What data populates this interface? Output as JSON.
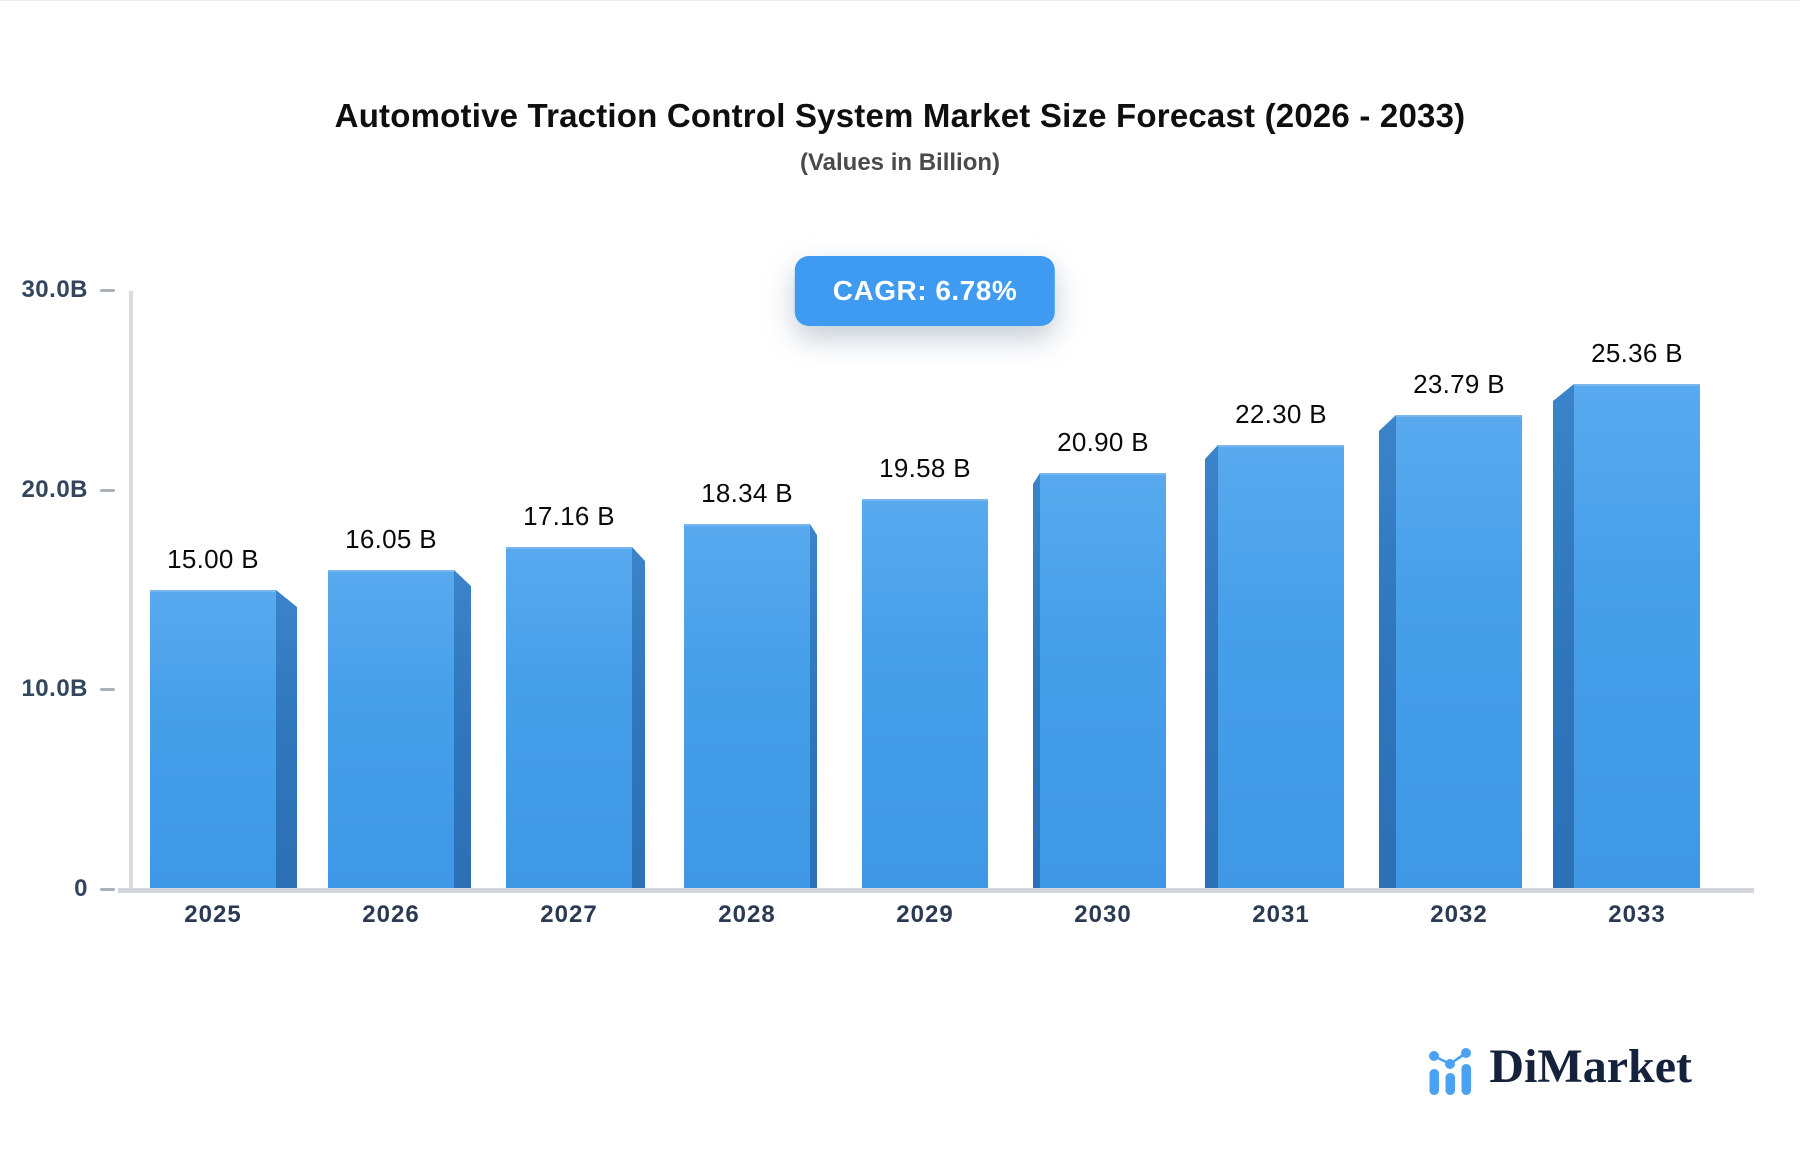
{
  "header": {
    "title": "Automotive Traction Control System Market Size Forecast (2026 - 2033)",
    "subtitle": "(Values in Billion)"
  },
  "badge": {
    "label": "CAGR: 6.78%",
    "background_color": "#3e9bf1",
    "text_color": "#ffffff"
  },
  "chart_data": {
    "type": "bar",
    "title": "Automotive Traction Control System Market Size Forecast (2026 - 2033)",
    "subtitle": "(Values in Billion)",
    "categories": [
      "2025",
      "2026",
      "2027",
      "2028",
      "2029",
      "2030",
      "2031",
      "2032",
      "2033"
    ],
    "values": [
      15.0,
      16.05,
      17.16,
      18.34,
      19.58,
      20.9,
      22.3,
      23.79,
      25.36
    ],
    "value_labels": [
      "15.00 B",
      "16.05 B",
      "17.16 B",
      "18.34 B",
      "19.58 B",
      "20.90 B",
      "22.30 B",
      "23.79 B",
      "25.36 B"
    ],
    "xlabel": "",
    "ylabel": "",
    "ylim": [
      0,
      30
    ],
    "yticks": [
      {
        "value": 0,
        "label": "0"
      },
      {
        "value": 10,
        "label": "10.0B"
      },
      {
        "value": 20,
        "label": "20.0B"
      },
      {
        "value": 30,
        "label": "30.0B"
      }
    ],
    "grid": false,
    "legend": false,
    "style": "3d-perspective-bars",
    "bar_face_color": "#459fe9",
    "bar_side_color": "#2e75bb",
    "axis_line_color": "#d5d8dd",
    "tick_label_color": "#32465e",
    "value_label_color": "#0a0a0a"
  },
  "logo": {
    "text": "DiMarket",
    "icon": "mini-bar-chart-logo-icon",
    "text_color": "#15223c",
    "icon_color": "#4ba1f2"
  }
}
